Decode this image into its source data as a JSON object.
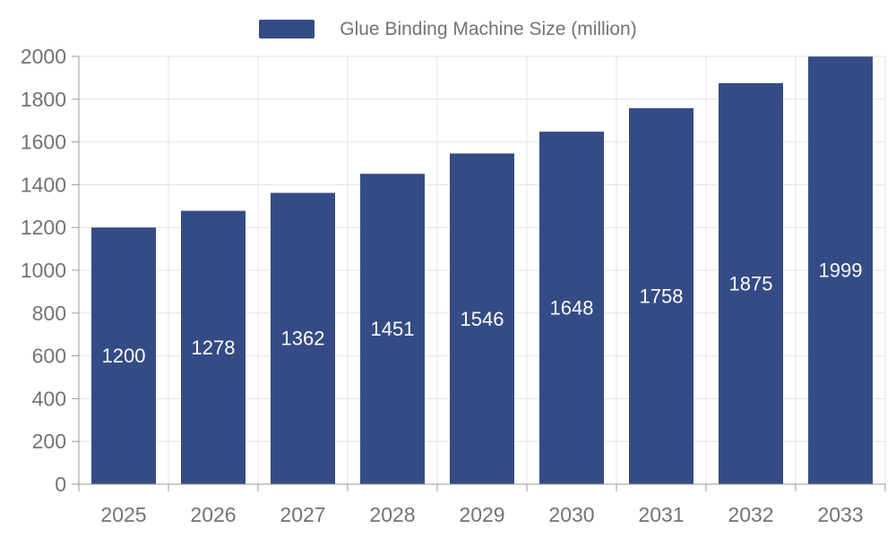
{
  "legend": {
    "label": "Glue Binding Machine Size (million)"
  },
  "colors": {
    "bar": "#344b85",
    "axis_line": "#999999",
    "grid_line": "#e3e3e3",
    "tick_label": "#737373",
    "legend_text": "#737373",
    "value_label": "#ffffff",
    "background": "#ffffff"
  },
  "chart_data": {
    "type": "bar",
    "title": "Glue Binding Machine Size (million)",
    "categories": [
      "2025",
      "2026",
      "2027",
      "2028",
      "2029",
      "2030",
      "2031",
      "2032",
      "2033"
    ],
    "values": [
      1200,
      1278,
      1362,
      1451,
      1546,
      1648,
      1758,
      1875,
      1999
    ],
    "xlabel": "",
    "ylabel": "",
    "ylim": [
      0,
      2000
    ],
    "y_tick_step": 200,
    "y_tick_labels": [
      "0",
      "200",
      "400",
      "600",
      "800",
      "1000",
      "1200",
      "1400",
      "1600",
      "1800",
      "2000"
    ],
    "grid": true,
    "legend_position": "top",
    "value_labels_shown": true
  }
}
